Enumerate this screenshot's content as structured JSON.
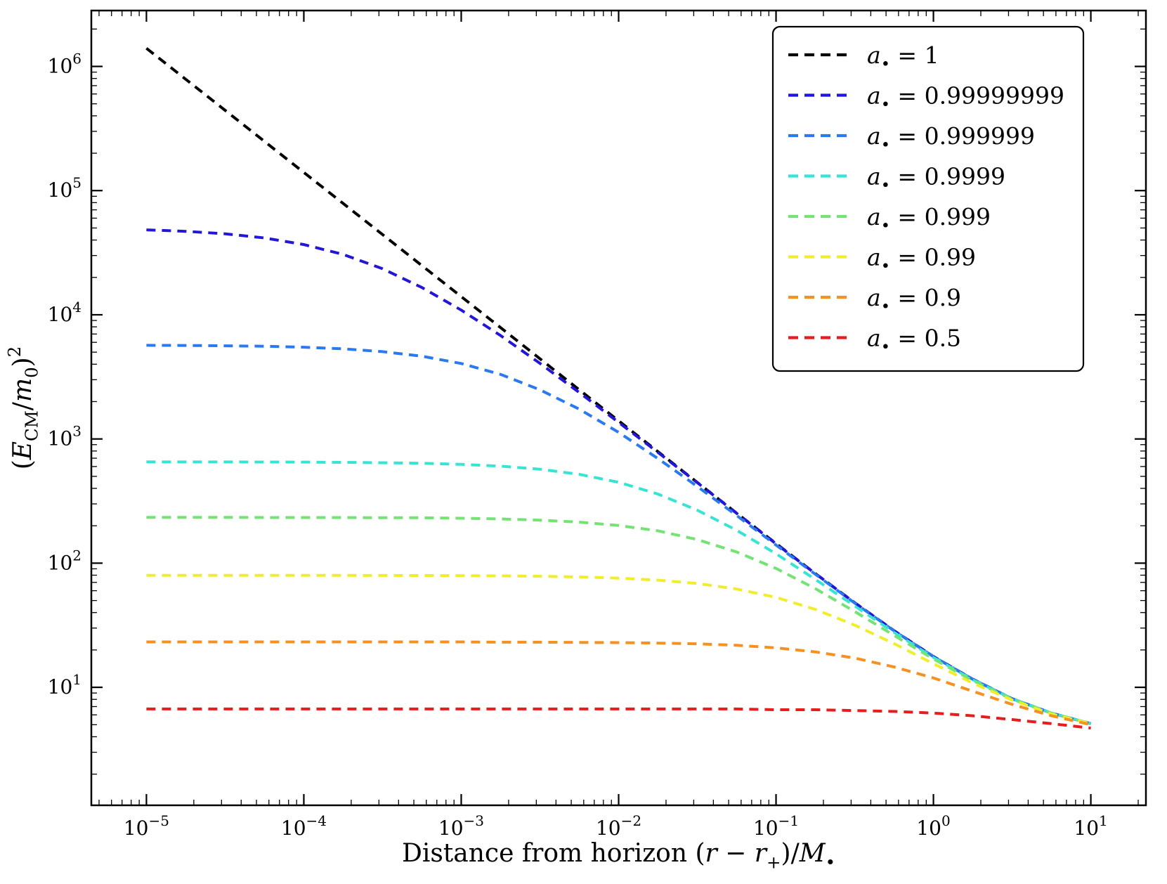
{
  "figure": {
    "background": "#ffffff",
    "frame_color": "#000000"
  },
  "chart_data": {
    "type": "line",
    "title": "",
    "xlabel": "Distance from horizon (r − r+)/M•",
    "ylabel": "(E_CM/m_0)^2",
    "x_scale": "log",
    "y_scale": "log",
    "xlim": [
      4.5e-06,
      22
    ],
    "ylim": [
      1.1,
      2800000
    ],
    "grid": false,
    "line_style": "dashed",
    "legend_position": "upper right",
    "x_tick_exponents": [
      -5,
      -4,
      -3,
      -2,
      -1,
      0,
      1
    ],
    "y_tick_exponents": [
      1,
      2,
      3,
      4,
      5,
      6
    ],
    "x": [
      1e-05,
      1.78e-05,
      3.16e-05,
      5.62e-05,
      0.0001,
      0.000178,
      0.000316,
      0.000562,
      0.001,
      0.00178,
      0.00316,
      0.00562,
      0.01,
      0.0178,
      0.0316,
      0.0562,
      0.1,
      0.178,
      0.316,
      0.562,
      1,
      1.78,
      3.16,
      5.62,
      10
    ],
    "series": [
      {
        "label": "a• = 1",
        "value": "1",
        "color": "#000000",
        "y": [
          1400000,
          787000,
          443000,
          249000,
          140000,
          78700,
          44300,
          24900,
          14000,
          7870,
          4430,
          2490,
          1400,
          790,
          447,
          253,
          144,
          82.4,
          48,
          28.6,
          17.7,
          11.6,
          8.1,
          6.2,
          5.1
        ]
      },
      {
        "label": "a• = 0.99999999",
        "value": "0.99999999",
        "color": "#2316d9",
        "y": [
          48300,
          47000,
          44900,
          41600,
          36800,
          30600,
          23500,
          16600,
          10900,
          6800,
          4070,
          2370,
          1360,
          778,
          445,
          252,
          143,
          82.2,
          48,
          28.6,
          17.7,
          11.6,
          8.1,
          6.2,
          5.1
        ]
      },
      {
        "label": "a• = 0.999999",
        "value": "0.999999",
        "color": "#2979f0",
        "y": [
          5680,
          5660,
          5630,
          5580,
          5480,
          5320,
          5050,
          4640,
          4050,
          3310,
          2490,
          1740,
          1130,
          695,
          415,
          242,
          140,
          81.3,
          47.7,
          28.5,
          17.7,
          11.6,
          8.1,
          6.2,
          5.1
        ]
      },
      {
        "label": "a• = 0.9999",
        "value": "0.9999",
        "color": "#35e4d3",
        "y": [
          654,
          653,
          653,
          652,
          651,
          648,
          644,
          637,
          625,
          604,
          571,
          519,
          448,
          360,
          267,
          184,
          119,
          73.9,
          45.2,
          27.7,
          17.4,
          11.5,
          8.1,
          6.2,
          5.1
        ]
      },
      {
        "label": "a• = 0.999",
        "value": "0.999",
        "color": "#74e374",
        "y": [
          234,
          234,
          234,
          233,
          233,
          233,
          232,
          232,
          230,
          227,
          222,
          214,
          201,
          182,
          155,
          123,
          90.7,
          62.3,
          40.8,
          26.2,
          16.9,
          11.3,
          8,
          6.2,
          5.1
        ]
      },
      {
        "label": "a• = 0.99",
        "value": "0.99",
        "color": "#f0ee2c",
        "y": [
          79.7,
          79.7,
          79.7,
          79.7,
          79.7,
          79.7,
          79.6,
          79.5,
          79.3,
          79,
          78.4,
          77.5,
          75.8,
          73,
          68.6,
          61.9,
          53,
          42.4,
          31.7,
          22.5,
          15.5,
          10.8,
          7.9,
          6.1,
          5.1
        ]
      },
      {
        "label": "a• = 0.9",
        "value": "0.9",
        "color": "#f59120",
        "y": [
          23.2,
          23.2,
          23.2,
          23.2,
          23.2,
          23.2,
          23.2,
          23.2,
          23.2,
          23.1,
          23.1,
          23,
          22.9,
          22.7,
          22.4,
          21.8,
          20.8,
          19.3,
          17.2,
          14.6,
          11.9,
          9.3,
          7.3,
          5.9,
          5
        ]
      },
      {
        "label": "a• = 0.5",
        "value": "0.5",
        "color": "#e71c1c",
        "y": [
          6.7,
          6.7,
          6.7,
          6.7,
          6.7,
          6.7,
          6.7,
          6.7,
          6.7,
          6.7,
          6.7,
          6.7,
          6.7,
          6.7,
          6.7,
          6.7,
          6.6,
          6.6,
          6.5,
          6.4,
          6.2,
          5.9,
          5.5,
          5.1,
          4.7
        ]
      }
    ]
  },
  "labels": {
    "tick_base": "10",
    "legend_var": "a",
    "legend_sub": "•",
    "legend_eq": " = ",
    "xlabel_parts": [
      [
        "up",
        "Distance from horizon ("
      ],
      [
        "it",
        "r"
      ],
      [
        "up",
        " − "
      ],
      [
        "it",
        "r"
      ],
      [
        "sub",
        "+"
      ],
      [
        "up",
        ")/"
      ],
      [
        "it",
        "M"
      ],
      [
        "sub",
        "•"
      ]
    ],
    "ylabel_parts": [
      [
        "up",
        "("
      ],
      [
        "it",
        "E"
      ],
      [
        "sub",
        "CM"
      ],
      [
        "up",
        "/"
      ],
      [
        "it",
        "m"
      ],
      [
        "sub",
        "0"
      ],
      [
        "up",
        ")"
      ],
      [
        "sup",
        "2"
      ]
    ]
  }
}
